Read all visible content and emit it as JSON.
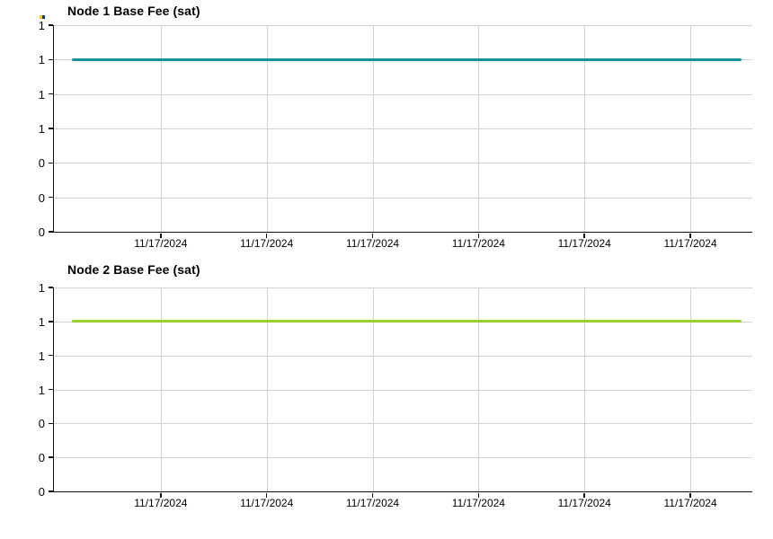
{
  "page": {
    "background": "#ffffff",
    "artifact_mark": {
      "colors": [
        "#ffc20e",
        "#00389b"
      ]
    }
  },
  "chart_data": [
    {
      "type": "line",
      "title": "Node 1 Base Fee (sat)",
      "xlabel": "",
      "ylabel": "",
      "ylim": [
        0,
        1.2
      ],
      "grid": true,
      "legend_position": "none",
      "y_ticks": [
        1.2,
        1.0,
        0.8,
        0.6,
        0.4,
        0.2,
        0
      ],
      "y_tick_labels": [
        "1",
        "1",
        "1",
        "1",
        "0",
        "0",
        "0"
      ],
      "x_tick_labels": [
        "11/17/2024",
        "11/17/2024",
        "11/17/2024",
        "11/17/2024",
        "11/17/2024",
        "11/17/2024"
      ],
      "series": [
        {
          "name": "Node 1 Base Fee",
          "color": "#1a8f9e",
          "x": [
            "11/17/2024",
            "11/17/2024",
            "11/17/2024",
            "11/17/2024",
            "11/17/2024",
            "11/17/2024"
          ],
          "values": [
            1,
            1,
            1,
            1,
            1,
            1
          ]
        }
      ]
    },
    {
      "type": "line",
      "title": "Node 2 Base Fee (sat)",
      "xlabel": "",
      "ylabel": "",
      "ylim": [
        0,
        1.2
      ],
      "grid": true,
      "legend_position": "none",
      "y_ticks": [
        1.2,
        1.0,
        0.8,
        0.6,
        0.4,
        0.2,
        0
      ],
      "y_tick_labels": [
        "1",
        "1",
        "1",
        "1",
        "0",
        "0",
        "0"
      ],
      "x_tick_labels": [
        "11/17/2024",
        "11/17/2024",
        "11/17/2024",
        "11/17/2024",
        "11/17/2024",
        "11/17/2024"
      ],
      "series": [
        {
          "name": "Node 2 Base Fee",
          "color": "#9bd032",
          "x": [
            "11/17/2024",
            "11/17/2024",
            "11/17/2024",
            "11/17/2024",
            "11/17/2024",
            "11/17/2024"
          ],
          "values": [
            1,
            1,
            1,
            1,
            1,
            1
          ]
        }
      ]
    }
  ]
}
